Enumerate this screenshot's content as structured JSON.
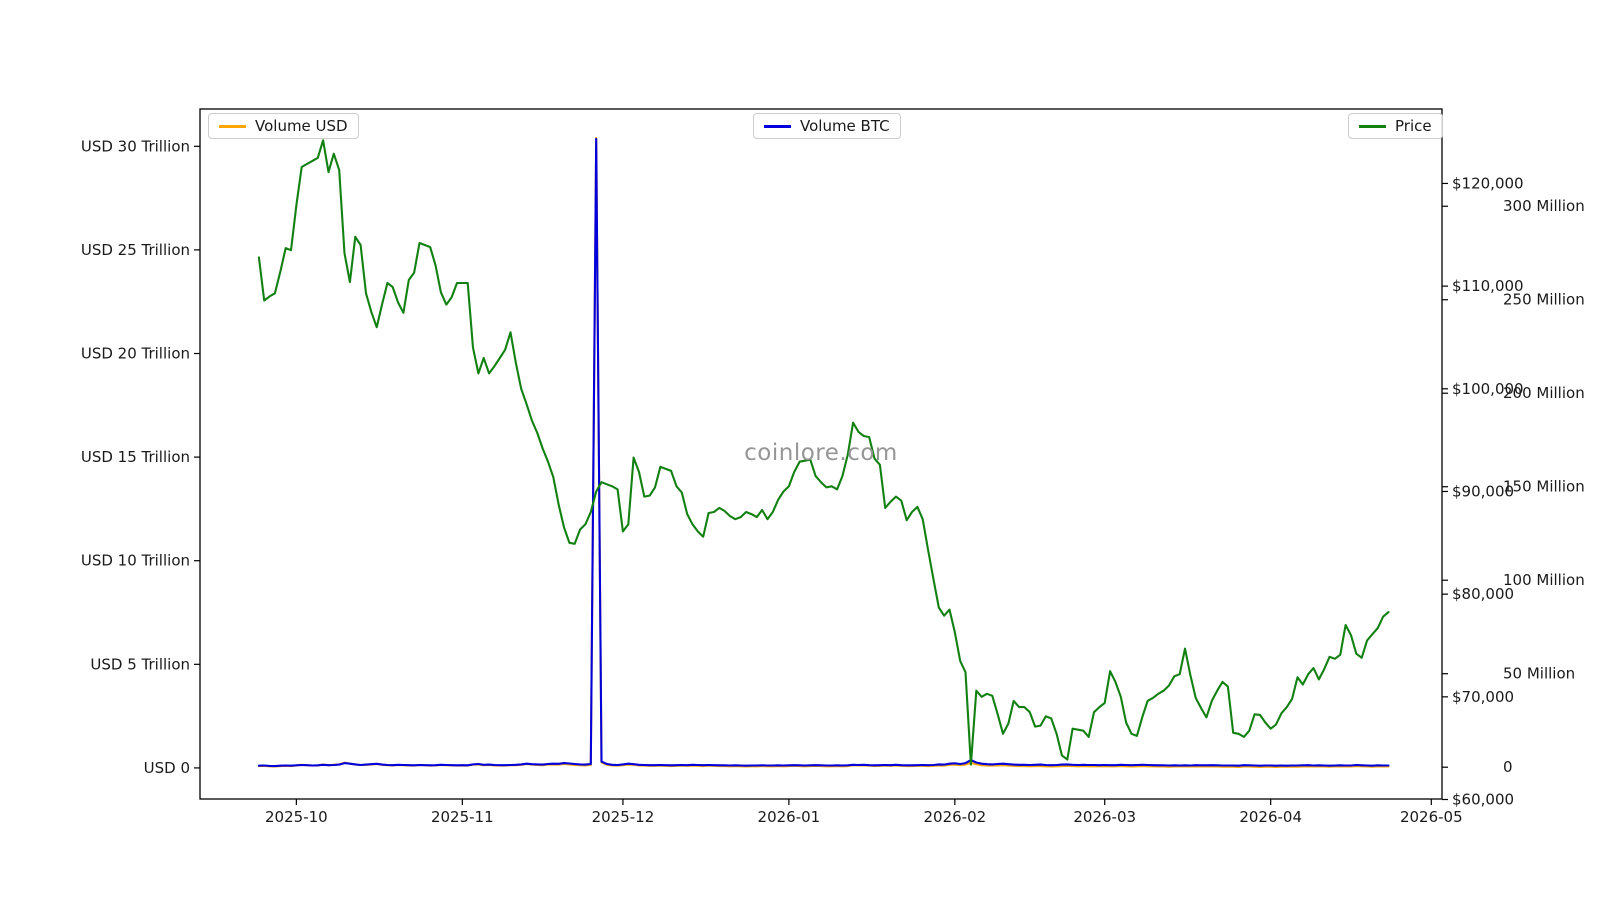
{
  "watermark": "coinlore.com",
  "legends": [
    {
      "label": "Volume USD",
      "color": "#ffa500"
    },
    {
      "label": "Volume BTC",
      "color": "#0000dd"
    },
    {
      "label": "Price",
      "color": "#128112"
    }
  ],
  "chart_data": {
    "type": "line",
    "title": "",
    "grid": false,
    "legend_positions": [
      "upper left",
      "upper center",
      "upper right"
    ],
    "x_axis": {
      "label": "",
      "range": [
        "2025-09-13",
        "2026-05-03"
      ],
      "ticks": [
        {
          "date": "2025-10-01",
          "label": "2025-10"
        },
        {
          "date": "2025-11-01",
          "label": "2025-11"
        },
        {
          "date": "2025-12-01",
          "label": "2025-12"
        },
        {
          "date": "2026-01-01",
          "label": "2026-01"
        },
        {
          "date": "2026-02-01",
          "label": "2026-02"
        },
        {
          "date": "2026-03-01",
          "label": "2026-03"
        },
        {
          "date": "2026-04-01",
          "label": "2026-04"
        },
        {
          "date": "2026-05-01",
          "label": "2026-05"
        }
      ]
    },
    "left_axis": {
      "series": "Volume USD",
      "unit": "trillion USD",
      "range": [
        -1.5,
        31.8
      ],
      "ticks": [
        {
          "value": 0,
          "label": "USD 0"
        },
        {
          "value": 5,
          "label": "USD 5 Trillion"
        },
        {
          "value": 10,
          "label": "USD 10 Trillion"
        },
        {
          "value": 15,
          "label": "USD 15 Trillion"
        },
        {
          "value": 20,
          "label": "USD 20 Trillion"
        },
        {
          "value": 25,
          "label": "USD 25 Trillion"
        },
        {
          "value": 30,
          "label": "USD 30 Trillion"
        }
      ]
    },
    "right_price_axis": {
      "series": "Price",
      "unit": "USD",
      "range": [
        60050,
        127250
      ],
      "ticks": [
        {
          "value": 60000,
          "label": "$60,000"
        },
        {
          "value": 70000,
          "label": "$70,000"
        },
        {
          "value": 80000,
          "label": "$80,000"
        },
        {
          "value": 90000,
          "label": "$90,000"
        },
        {
          "value": 100000,
          "label": "$100,000"
        },
        {
          "value": 110000,
          "label": "$110,000"
        },
        {
          "value": 120000,
          "label": "$120,000"
        }
      ]
    },
    "right_volume_axis": {
      "series": "Volume BTC",
      "unit": "million BTC",
      "range": [
        -17,
        352
      ],
      "ticks": [
        {
          "value": 0,
          "label": "0"
        },
        {
          "value": 50,
          "label": "50 Million"
        },
        {
          "value": 100,
          "label": "100 Million"
        },
        {
          "value": 150,
          "label": "150 Million"
        },
        {
          "value": 200,
          "label": "200 Million"
        },
        {
          "value": 250,
          "label": "250 Million"
        },
        {
          "value": 300,
          "label": "300 Million"
        }
      ]
    },
    "series": [
      {
        "id": "volume-usd",
        "name": "Volume USD",
        "axis": "left",
        "color": "#ffa500",
        "unit": "trillion USD per day",
        "start_date": "2025-09-24",
        "interval_days": 1,
        "values": [
          0.09,
          0.1,
          0.08,
          0.07,
          0.09,
          0.1,
          0.09,
          0.12,
          0.15,
          0.13,
          0.11,
          0.12,
          0.16,
          0.13,
          0.15,
          0.17,
          0.25,
          0.21,
          0.17,
          0.14,
          0.15,
          0.17,
          0.19,
          0.15,
          0.13,
          0.12,
          0.14,
          0.13,
          0.12,
          0.11,
          0.14,
          0.13,
          0.11,
          0.12,
          0.14,
          0.13,
          0.12,
          0.11,
          0.12,
          0.11,
          0.16,
          0.17,
          0.13,
          0.14,
          0.12,
          0.11,
          0.11,
          0.13,
          0.13,
          0.15,
          0.19,
          0.16,
          0.14,
          0.13,
          0.16,
          0.17,
          0.16,
          0.19,
          0.17,
          0.14,
          0.13,
          0.12,
          0.15,
          30.4,
          0.27,
          0.15,
          0.12,
          0.11,
          0.13,
          0.16,
          0.15,
          0.12,
          0.11,
          0.1,
          0.1,
          0.11,
          0.1,
          0.09,
          0.1,
          0.11,
          0.1,
          0.11,
          0.1,
          0.09,
          0.11,
          0.1,
          0.09,
          0.09,
          0.08,
          0.09,
          0.08,
          0.07,
          0.08,
          0.08,
          0.09,
          0.08,
          0.08,
          0.09,
          0.08,
          0.09,
          0.1,
          0.09,
          0.08,
          0.09,
          0.1,
          0.09,
          0.08,
          0.08,
          0.09,
          0.08,
          0.09,
          0.13,
          0.12,
          0.12,
          0.11,
          0.09,
          0.1,
          0.11,
          0.1,
          0.12,
          0.1,
          0.09,
          0.09,
          0.1,
          0.1,
          0.09,
          0.1,
          0.12,
          0.11,
          0.15,
          0.16,
          0.13,
          0.16,
          0.24,
          0.18,
          0.13,
          0.11,
          0.11,
          0.12,
          0.13,
          0.11,
          0.1,
          0.09,
          0.09,
          0.08,
          0.09,
          0.09,
          0.08,
          0.07,
          0.08,
          0.09,
          0.1,
          0.09,
          0.08,
          0.09,
          0.08,
          0.08,
          0.08,
          0.08,
          0.08,
          0.08,
          0.09,
          0.08,
          0.07,
          0.08,
          0.09,
          0.08,
          0.08,
          0.07,
          0.07,
          0.06,
          0.07,
          0.07,
          0.07,
          0.07,
          0.08,
          0.07,
          0.07,
          0.08,
          0.07,
          0.06,
          0.06,
          0.06,
          0.05,
          0.07,
          0.07,
          0.06,
          0.05,
          0.06,
          0.06,
          0.05,
          0.06,
          0.06,
          0.06,
          0.06,
          0.07,
          0.08,
          0.07,
          0.07,
          0.07,
          0.06,
          0.07,
          0.07,
          0.07,
          0.07,
          0.09,
          0.08,
          0.07,
          0.06,
          0.08,
          0.07,
          0.07
        ]
      },
      {
        "id": "volume-btc",
        "name": "Volume BTC",
        "axis": "right_volume",
        "color": "#0000dd",
        "unit": "million BTC per day",
        "start_date": "2025-09-24",
        "interval_days": 1,
        "values": [
          0.8,
          0.9,
          0.7,
          0.6,
          0.8,
          0.9,
          0.8,
          1.0,
          1.2,
          1.1,
          0.9,
          1.0,
          1.3,
          1.1,
          1.2,
          1.4,
          2.2,
          1.9,
          1.5,
          1.2,
          1.4,
          1.6,
          1.8,
          1.4,
          1.2,
          1.1,
          1.3,
          1.2,
          1.1,
          1.0,
          1.2,
          1.1,
          1.0,
          1.1,
          1.3,
          1.2,
          1.1,
          1.0,
          1.1,
          1.0,
          1.5,
          1.7,
          1.3,
          1.4,
          1.2,
          1.1,
          1.1,
          1.2,
          1.3,
          1.5,
          1.9,
          1.6,
          1.5,
          1.4,
          1.7,
          1.9,
          1.8,
          2.2,
          2.0,
          1.7,
          1.5,
          1.4,
          1.7,
          336,
          3.0,
          1.7,
          1.3,
          1.2,
          1.5,
          1.9,
          1.6,
          1.3,
          1.2,
          1.1,
          1.1,
          1.2,
          1.1,
          1.0,
          1.1,
          1.2,
          1.1,
          1.3,
          1.2,
          1.1,
          1.2,
          1.1,
          1.0,
          1.0,
          0.9,
          1.0,
          0.9,
          0.8,
          0.9,
          0.9,
          1.0,
          0.9,
          0.9,
          1.0,
          0.9,
          1.0,
          1.1,
          1.0,
          0.9,
          1.0,
          1.1,
          1.0,
          0.9,
          0.9,
          1.0,
          0.9,
          1.0,
          1.3,
          1.2,
          1.3,
          1.1,
          1.0,
          1.1,
          1.2,
          1.1,
          1.3,
          1.1,
          1.0,
          1.0,
          1.1,
          1.2,
          1.1,
          1.2,
          1.5,
          1.4,
          1.9,
          2.1,
          1.7,
          2.2,
          3.8,
          2.5,
          1.9,
          1.6,
          1.5,
          1.7,
          1.9,
          1.6,
          1.4,
          1.3,
          1.3,
          1.2,
          1.3,
          1.4,
          1.2,
          1.1,
          1.2,
          1.4,
          1.5,
          1.3,
          1.2,
          1.3,
          1.2,
          1.2,
          1.1,
          1.2,
          1.1,
          1.1,
          1.3,
          1.2,
          1.1,
          1.2,
          1.3,
          1.2,
          1.1,
          1.0,
          1.0,
          0.9,
          1.0,
          0.9,
          1.0,
          0.9,
          1.1,
          1.0,
          1.0,
          1.1,
          1.0,
          0.9,
          0.9,
          0.9,
          0.8,
          1.1,
          1.0,
          0.9,
          0.8,
          0.9,
          0.9,
          0.8,
          0.9,
          0.8,
          0.9,
          0.9,
          1.0,
          1.1,
          0.9,
          1.0,
          0.9,
          0.8,
          0.9,
          1.0,
          0.9,
          0.9,
          1.2,
          1.0,
          0.9,
          0.8,
          1.0,
          0.9,
          0.9
        ]
      },
      {
        "id": "price",
        "name": "Price",
        "axis": "right_price",
        "color": "#128112",
        "unit": "USD",
        "start_date": "2025-09-24",
        "interval_days": 1,
        "values": [
          112800,
          108600,
          109000,
          109300,
          111400,
          113700,
          113500,
          117900,
          121600,
          121900,
          122200,
          122500,
          124200,
          121100,
          122900,
          121300,
          113200,
          110400,
          114800,
          114000,
          109300,
          107500,
          106000,
          108200,
          110300,
          109900,
          108400,
          107400,
          110600,
          111300,
          114200,
          114000,
          113800,
          112000,
          109400,
          108200,
          108900,
          110300,
          110300,
          110300,
          104000,
          101500,
          103000,
          101500,
          102200,
          103000,
          103800,
          105500,
          102500,
          100000,
          98500,
          96900,
          95700,
          94200,
          92900,
          91400,
          88700,
          86500,
          85000,
          84900,
          86300,
          86800,
          88000,
          90000,
          90900,
          90700,
          90500,
          90200,
          86100,
          86800,
          93300,
          91900,
          89500,
          89600,
          90400,
          92400,
          92200,
          92000,
          90500,
          89900,
          87800,
          86800,
          86100,
          85600,
          87900,
          88000,
          88400,
          88100,
          87600,
          87300,
          87500,
          88000,
          87800,
          87500,
          88200,
          87300,
          88000,
          89200,
          90000,
          90500,
          91900,
          92900,
          93000,
          93100,
          91500,
          90900,
          90400,
          90500,
          90200,
          91500,
          93600,
          96700,
          95800,
          95400,
          95300,
          93200,
          92600,
          88400,
          89000,
          89500,
          89100,
          87200,
          88000,
          88500,
          87300,
          84300,
          81500,
          78700,
          77900,
          78500,
          76300,
          73500,
          72400,
          63400,
          70600,
          70000,
          70300,
          70100,
          68300,
          66400,
          67400,
          69600,
          69000,
          69000,
          68500,
          67100,
          67200,
          68100,
          67900,
          66400,
          64300,
          63900,
          66900,
          66800,
          66700,
          66100,
          68500,
          69000,
          69400,
          72500,
          71450,
          70000,
          67500,
          66400,
          66200,
          68000,
          69600,
          69900,
          70300,
          70600,
          71100,
          72000,
          72200,
          74700,
          72100,
          69900,
          68900,
          68000,
          69600,
          70600,
          71450,
          71000,
          66500,
          66400,
          66100,
          66700,
          68300,
          68245,
          67500,
          66900,
          67300,
          68400,
          69000,
          69800,
          71900,
          71200,
          72200,
          72800,
          71700,
          72700,
          73900,
          73700,
          74100,
          77000,
          76000,
          74200,
          73800,
          75500,
          76100,
          76700,
          77800,
          78250
        ]
      }
    ]
  }
}
